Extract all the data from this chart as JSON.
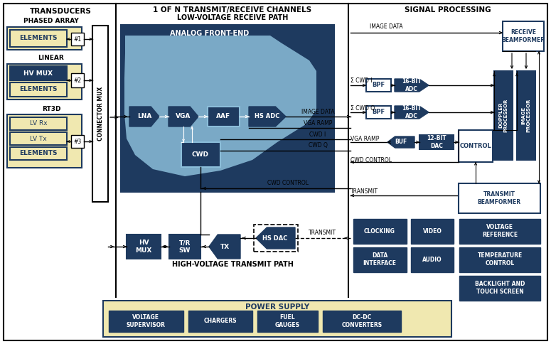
{
  "title_transducers": "TRANSDUCERS",
  "title_channels": "1 OF N TRANSMIT/RECEIVE CHANNELS",
  "title_lv_path": "LOW-VOLTAGE RECEIVE PATH",
  "title_hv_path": "HIGH-VOLTAGE TRANSMIT PATH",
  "title_signal": "SIGNAL PROCESSING",
  "title_afe": "ANALOG FRONT-END",
  "dark_blue": "#1e3a5f",
  "medium_blue": "#2e5f8a",
  "light_blue_afe": "#8bbdd9",
  "pale_blue_afe": "#b8d4e8",
  "gold_bg": "#e8d89a",
  "pale_gold": "#f0e8b0",
  "white": "#ffffff",
  "black": "#000000",
  "light_gray": "#d8d8d8"
}
